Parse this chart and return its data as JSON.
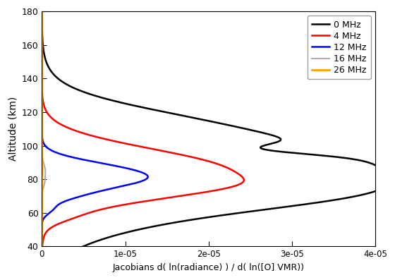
{
  "title": "",
  "xlabel": "Jacobians d( ln(radiance) ) / d( ln([O] VMR))",
  "ylabel": "Altitude (km)",
  "xlim": [
    0,
    4e-05
  ],
  "ylim": [
    40,
    180
  ],
  "yticks": [
    40,
    60,
    80,
    100,
    120,
    140,
    160,
    180
  ],
  "xticks": [
    0,
    1e-05,
    2e-05,
    3e-05,
    4e-05
  ],
  "xticklabels": [
    "0",
    "1e-05",
    "2e-05",
    "3e-05",
    "4e-05"
  ],
  "legend_labels": [
    "0 MHz",
    "4 MHz",
    "12 MHz",
    "16 MHz",
    "26 MHz"
  ],
  "legend_colors": [
    "#000000",
    "#ff0000",
    "#0000ff",
    "#b8a8a8",
    "#ffa500"
  ],
  "background_color": "#ffffff"
}
